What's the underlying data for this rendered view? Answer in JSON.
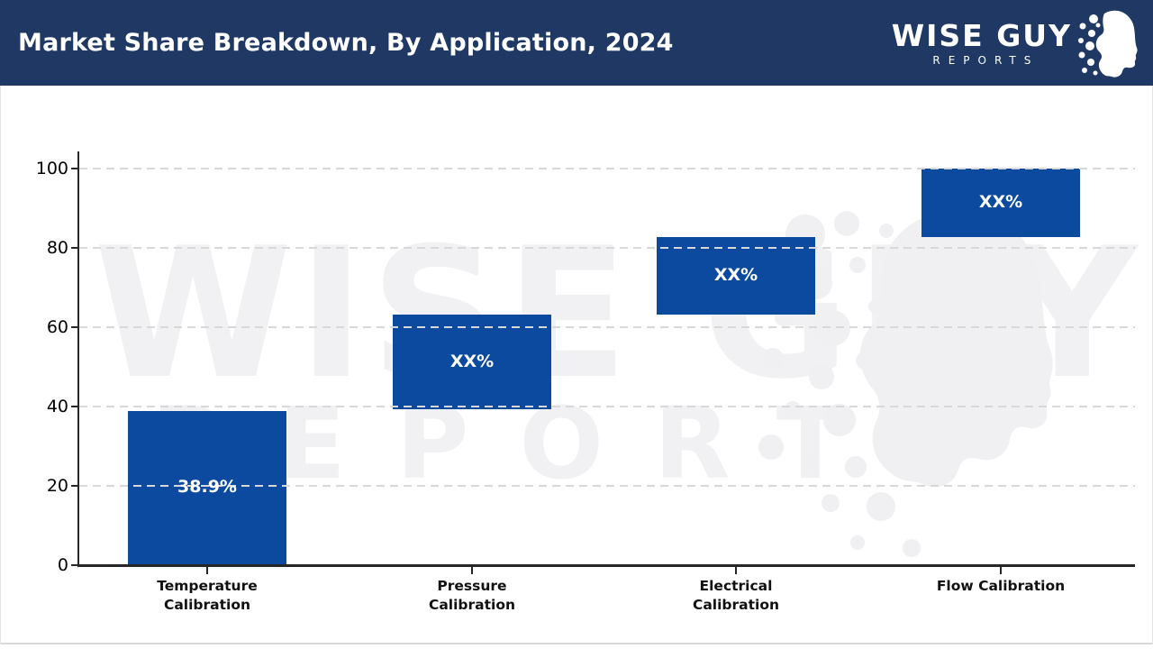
{
  "header": {
    "title": "Market Share Breakdown, By Application, 2024",
    "logo": {
      "line1": "WISE GUY",
      "line2": "REPORTS"
    }
  },
  "watermark": {
    "line1": "WISE GUY",
    "line2": "REPORTS"
  },
  "chart_data": {
    "type": "bar",
    "variant": "waterfall",
    "title": "Market Share Breakdown, By Application, 2024",
    "categories": [
      "Temperature Calibration",
      "Pressure Calibration",
      "Electrical Calibration",
      "Flow Calibration"
    ],
    "category_label_lines": [
      [
        "Temperature",
        "Calibration"
      ],
      [
        "Pressure",
        "Calibration"
      ],
      [
        "Electrical",
        "Calibration"
      ],
      [
        "Flow Calibration"
      ]
    ],
    "segments": [
      {
        "category": "Temperature Calibration",
        "start": 0,
        "end": 38.9,
        "label": "38.9%"
      },
      {
        "category": "Pressure Calibration",
        "start": 39.3,
        "end": 63.2,
        "label": "XX%"
      },
      {
        "category": "Electrical Calibration",
        "start": 63.2,
        "end": 82.7,
        "label": "XX%"
      },
      {
        "category": "Flow Calibration",
        "start": 82.7,
        "end": 100,
        "label": "XX%"
      }
    ],
    "yticks": [
      0,
      20,
      40,
      60,
      80,
      100
    ],
    "ylim": [
      0,
      105
    ],
    "xlabel": "",
    "ylabel": "",
    "grid": "dashed-horizontal",
    "legend": "none"
  },
  "colors": {
    "header_bg": "#1f3864",
    "header_text": "#ffffff",
    "bar": "#0b4a9e",
    "bar_label": "#ffffff",
    "grid": "#d8d8d8",
    "axis": "#262626",
    "watermark": "#f1f1f3",
    "bottom_rule": "#d9d9d9"
  }
}
